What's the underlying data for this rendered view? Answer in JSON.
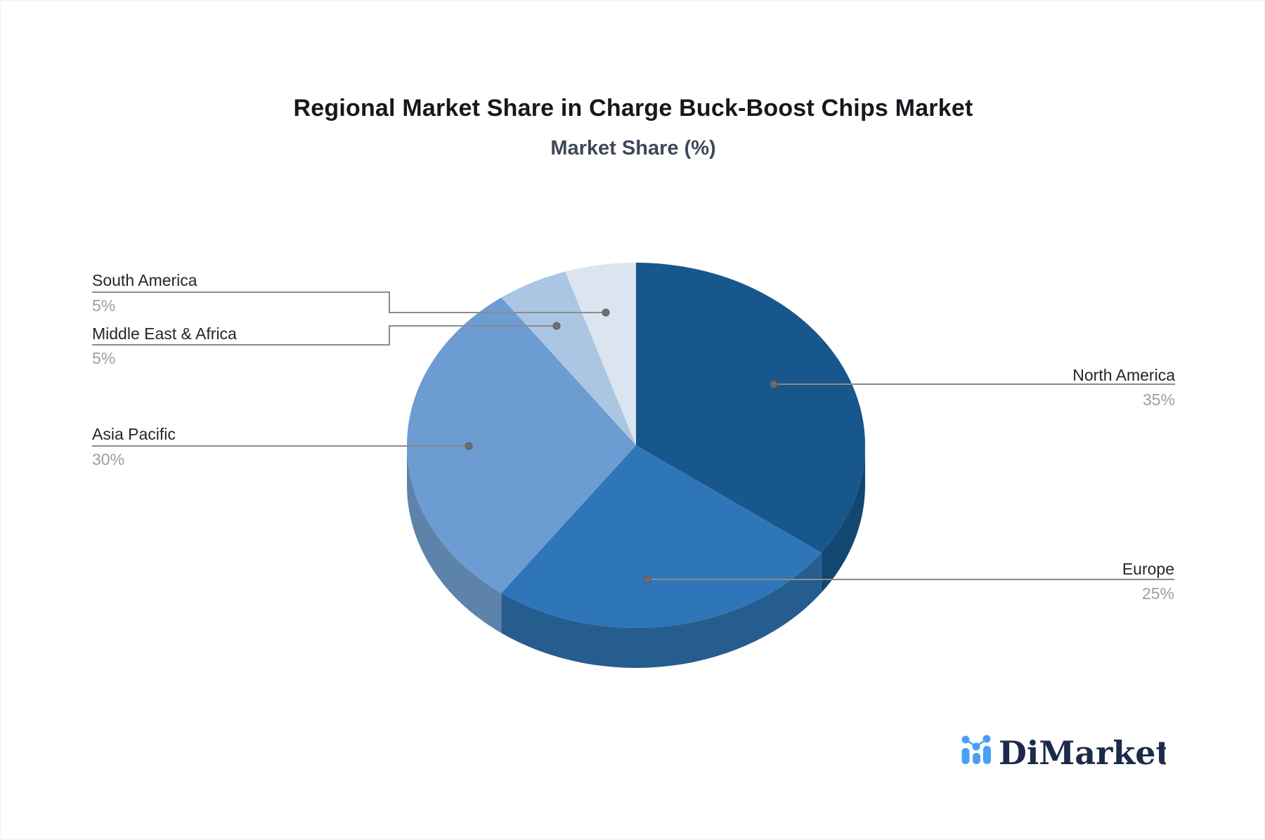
{
  "header": {
    "title": "Regional Market Share in Charge Buck-Boost Chips Market",
    "subtitle": "Market Share (%)"
  },
  "chart_data": {
    "type": "pie",
    "style": "3d",
    "title": "Regional Market Share in Charge Buck-Boost Chips Market",
    "subtitle": "Market Share (%)",
    "unit": "%",
    "start_angle": "12 o'clock, clockwise",
    "slices": [
      {
        "label": "North America",
        "value": 35,
        "display": "35%",
        "color": "#17578c",
        "side_color": "#12476f",
        "label_side": "right"
      },
      {
        "label": "Europe",
        "value": 25,
        "display": "25%",
        "color": "#2e76b8",
        "side_color": "#265d8f",
        "label_side": "right"
      },
      {
        "label": "Asia Pacific",
        "value": 30,
        "display": "30%",
        "color": "#6c9cd1",
        "side_color": "#5e83ab",
        "label_side": "left"
      },
      {
        "label": "Middle East & Africa",
        "value": 5,
        "display": "5%",
        "color": "#aac6e3",
        "side_color": "#8fafd0",
        "label_side": "left"
      },
      {
        "label": "South America",
        "value": 5,
        "display": "5%",
        "color": "#dce4ef",
        "side_color": "#c2cfdf",
        "label_side": "left"
      }
    ],
    "leader_line_color": "#8c8c8c",
    "leader_dot_color": "#6e6e6e",
    "label_text_color": "#262626",
    "percent_text_color": "#9e9e9e",
    "legend": "none"
  },
  "branding": {
    "logo_text": "DiMarket",
    "logo_text_color": "#1c2b4a",
    "logo_icon": "bar-chart-with-trend-dots",
    "logo_icon_color": "#4a9ff5"
  }
}
